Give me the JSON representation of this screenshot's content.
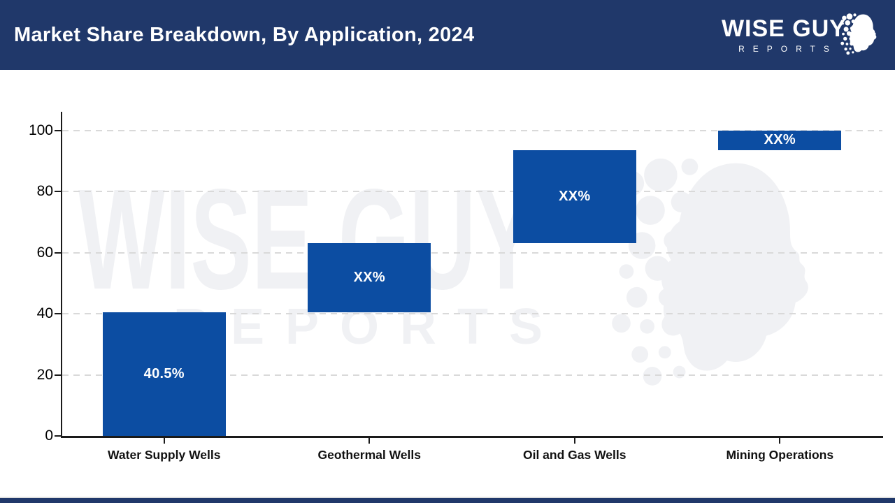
{
  "header": {
    "title": "Market Share Breakdown, By Application, 2024",
    "bg_color": "#20386A",
    "brand": {
      "line1": "WISE GUY",
      "line2": "REPORTS"
    }
  },
  "watermark": {
    "line1": "WISE GUY",
    "line2": "REPORTS",
    "color": "#F0F1F4"
  },
  "chart_data": {
    "type": "bar",
    "subtype": "waterfall-breakdown",
    "title": "Market Share Breakdown, By Application, 2024",
    "categories": [
      "Water Supply Wells",
      "Geothermal Wells",
      "Oil and Gas Wells",
      "Mining Operations"
    ],
    "segments": [
      {
        "category": "Water Supply Wells",
        "start": 0,
        "end": 40.5,
        "label": "40.5%"
      },
      {
        "category": "Geothermal Wells",
        "start": 40.5,
        "end": 63,
        "label": "XX%"
      },
      {
        "category": "Oil and Gas Wells",
        "start": 63,
        "end": 93.5,
        "label": "XX%"
      },
      {
        "category": "Mining Operations",
        "start": 93.5,
        "end": 100,
        "label": "XX%"
      }
    ],
    "ylim": [
      0,
      100
    ],
    "yticks": [
      0,
      20,
      40,
      60,
      80,
      100
    ],
    "xlabel": "",
    "ylabel": "",
    "grid": "horizontal-dashed",
    "legend": "none",
    "bar_color": "#0C4DA2",
    "bar_label_color": "#FFFFFF",
    "axis_color": "#1A1A1A",
    "gridline_color": "#D9D9D9"
  },
  "footer": {
    "bg_color": "#20386A"
  }
}
